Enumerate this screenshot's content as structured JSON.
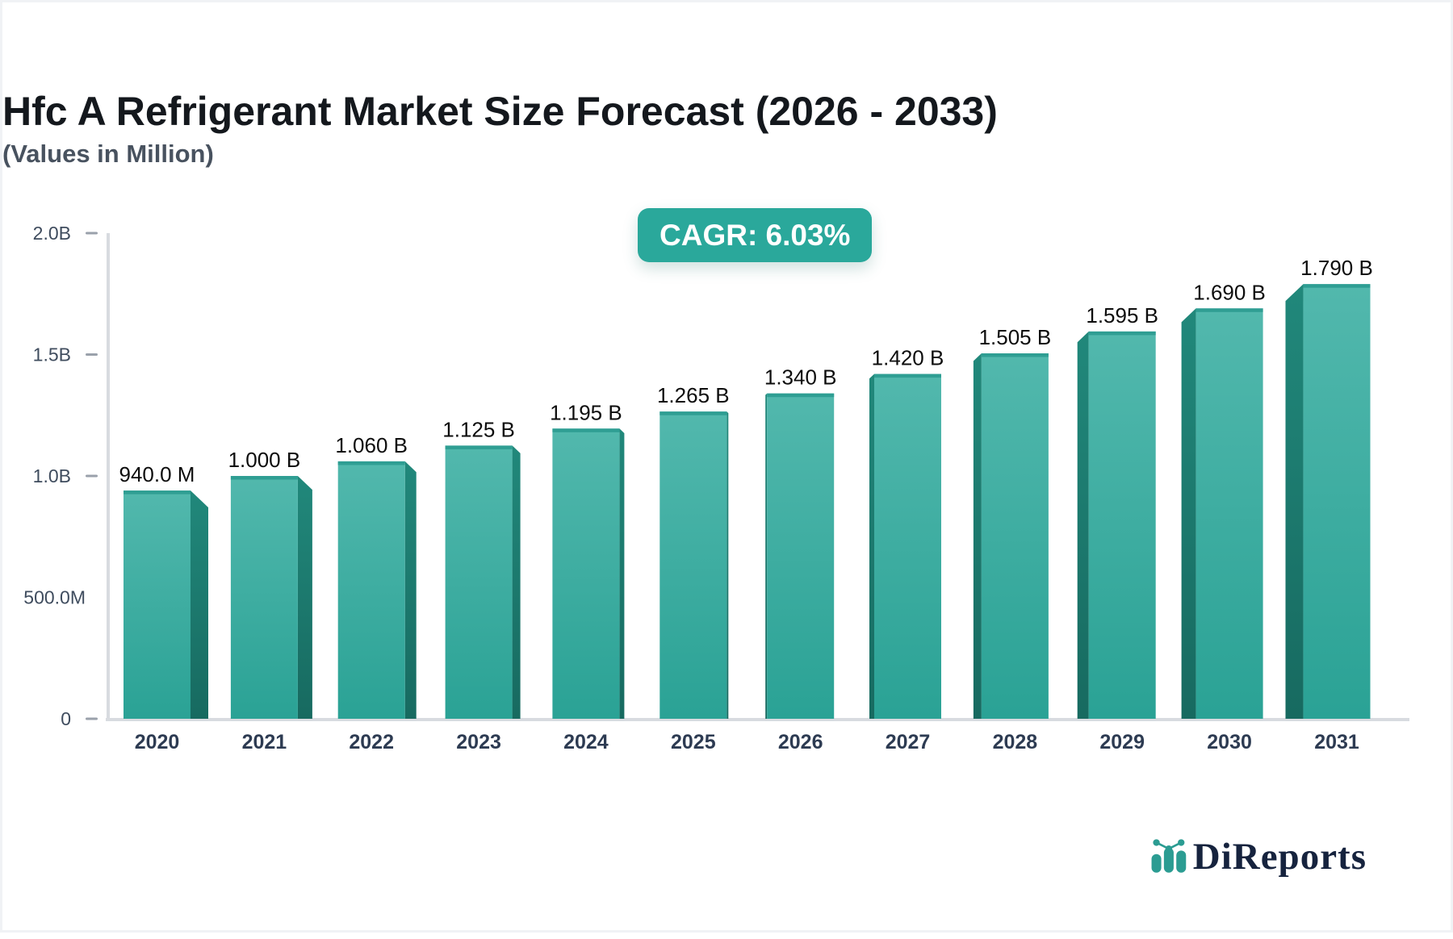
{
  "page": {
    "badge_label": "CAGR: 6.03%"
  },
  "chart_data": {
    "type": "bar",
    "title": "Hfc A Refrigerant Market Size Forecast (2026 - 2033)",
    "subtitle": "(Values in Million)",
    "badge": "CAGR: 6.03%",
    "xlabel": "",
    "ylabel": "",
    "unit": "millions",
    "ylim": [
      0,
      2000
    ],
    "grid": "off",
    "legend": "none",
    "categories": [
      "2020",
      "2021",
      "2022",
      "2023",
      "2024",
      "2025",
      "2026",
      "2027",
      "2028",
      "2029",
      "2030",
      "2031"
    ],
    "values": [
      940,
      1000,
      1060,
      1125,
      1195,
      1265,
      1340,
      1420,
      1505,
      1595,
      1690,
      1790
    ],
    "value_labels": [
      "940.0 M",
      "1.000 B",
      "1.060 B",
      "1.125 B",
      "1.195 B",
      "1.265 B",
      "1.340 B",
      "1.420 B",
      "1.505 B",
      "1.595 B",
      "1.690 B",
      "1.790 B"
    ],
    "y_ticks": [
      {
        "label": "2.0B",
        "value": 2000,
        "dash": true
      },
      {
        "label": "1.5B",
        "value": 1500,
        "dash": true
      },
      {
        "label": "1.0B",
        "value": 1000,
        "dash": true
      },
      {
        "label": "500.0M",
        "value": 500,
        "dash": false
      },
      {
        "label": "0",
        "value": 0,
        "dash": true
      }
    ],
    "colors": {
      "bar_face_top": "#52b8ad",
      "bar_face_bottom": "#2aa295",
      "bar_top_strip": "#2f9e93",
      "bar_side_top": "#21887b",
      "bar_side_bottom": "#176a60",
      "axis_line": "#d8dbe0",
      "tick_dash": "#9aa1ab",
      "tick_text": "#3f4c5e",
      "year_text": "#2d3b52",
      "value_text": "#0d0d0d",
      "badge_bg": "#2aa89b",
      "badge_text": "#ffffff"
    }
  },
  "logo": {
    "text": "DiReports",
    "icon": "mini-bar-line-chart-icon",
    "icon_color": "#2b9c92",
    "text_color": "#16233e"
  }
}
